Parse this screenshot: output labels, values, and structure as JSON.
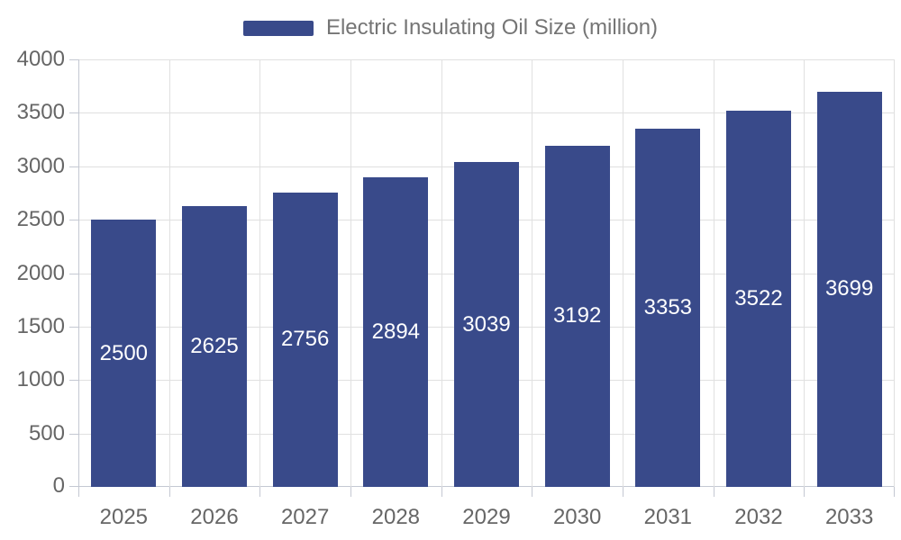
{
  "chart_data": {
    "type": "bar",
    "title": "Electric Insulating Oil Size (million)",
    "legend": [
      "Electric Insulating Oil Size (million)"
    ],
    "legend_position": "top-center",
    "categories": [
      "2025",
      "2026",
      "2027",
      "2028",
      "2029",
      "2030",
      "2031",
      "2032",
      "2033"
    ],
    "values": [
      2500,
      2625,
      2756,
      2894,
      3039,
      3192,
      3353,
      3522,
      3699
    ],
    "xlabel": "",
    "ylabel": "",
    "ylim": [
      0,
      4000
    ],
    "y_tick_step": 500,
    "y_ticks": [
      0,
      500,
      1000,
      1500,
      2000,
      2500,
      3000,
      3500,
      4000
    ],
    "grid": true,
    "bar_labels_inside": true,
    "colors": {
      "bar": "#394A8A",
      "bar_label": "#FFFFFF",
      "grid_line": "#E0E0E0",
      "axis_line": "#C4C8D2",
      "axis_label": "#666666",
      "legend_text": "#757575",
      "background": "#FFFFFF"
    }
  }
}
